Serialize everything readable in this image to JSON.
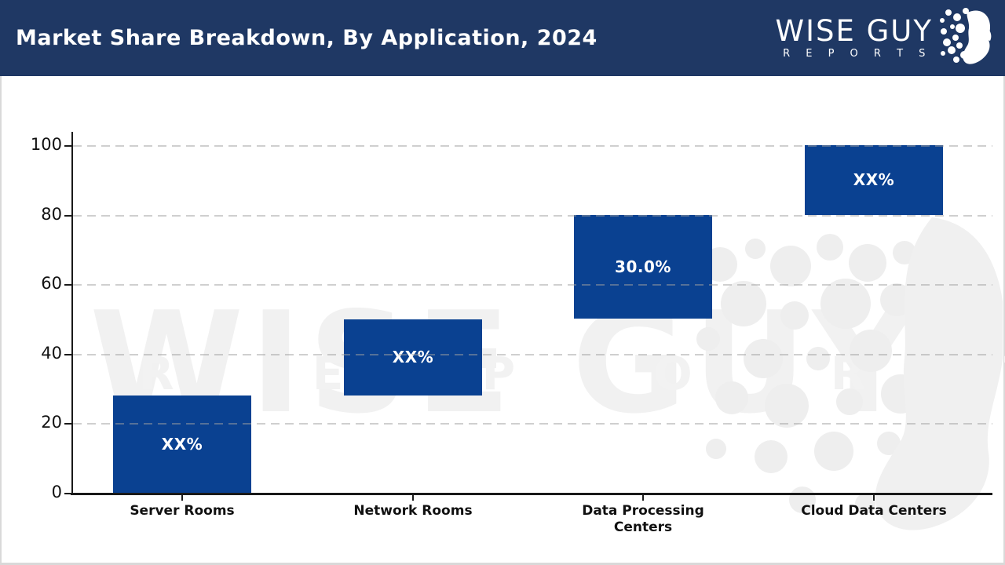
{
  "header": {
    "title": "Market Share Breakdown, By Application, 2024",
    "logo": {
      "line1": "WISE GUY",
      "line2": "R E P O R T S"
    }
  },
  "watermark": {
    "line1": "WISE GUY",
    "line2": "R E P O R T S"
  },
  "chart_data": {
    "type": "bar",
    "subtype": "waterfall",
    "title": "Market Share Breakdown, By Application, 2024",
    "categories": [
      "Server Rooms",
      "Network Rooms",
      "Data Processing Centers",
      "Cloud Data Centers"
    ],
    "bars": [
      {
        "category": "Server Rooms",
        "label": "XX%",
        "start": 0,
        "end": 28
      },
      {
        "category": "Network Rooms",
        "label": "XX%",
        "start": 28,
        "end": 50
      },
      {
        "category": "Data Processing Centers",
        "label": "30.0%",
        "start": 50,
        "end": 80
      },
      {
        "category": "Cloud Data Centers",
        "label": "XX%",
        "start": 80,
        "end": 100
      }
    ],
    "yticks": [
      0,
      20,
      40,
      60,
      80,
      100
    ],
    "ylim": [
      0,
      105
    ],
    "xlabel": "",
    "ylabel": "",
    "legend": "none",
    "grid": "horizontal-dashed-over-bars",
    "bar_color": "#0a4191",
    "header_color": "#1f3864",
    "grid_color": "#c8c8c8",
    "axis_color": "#1a1a1a"
  }
}
